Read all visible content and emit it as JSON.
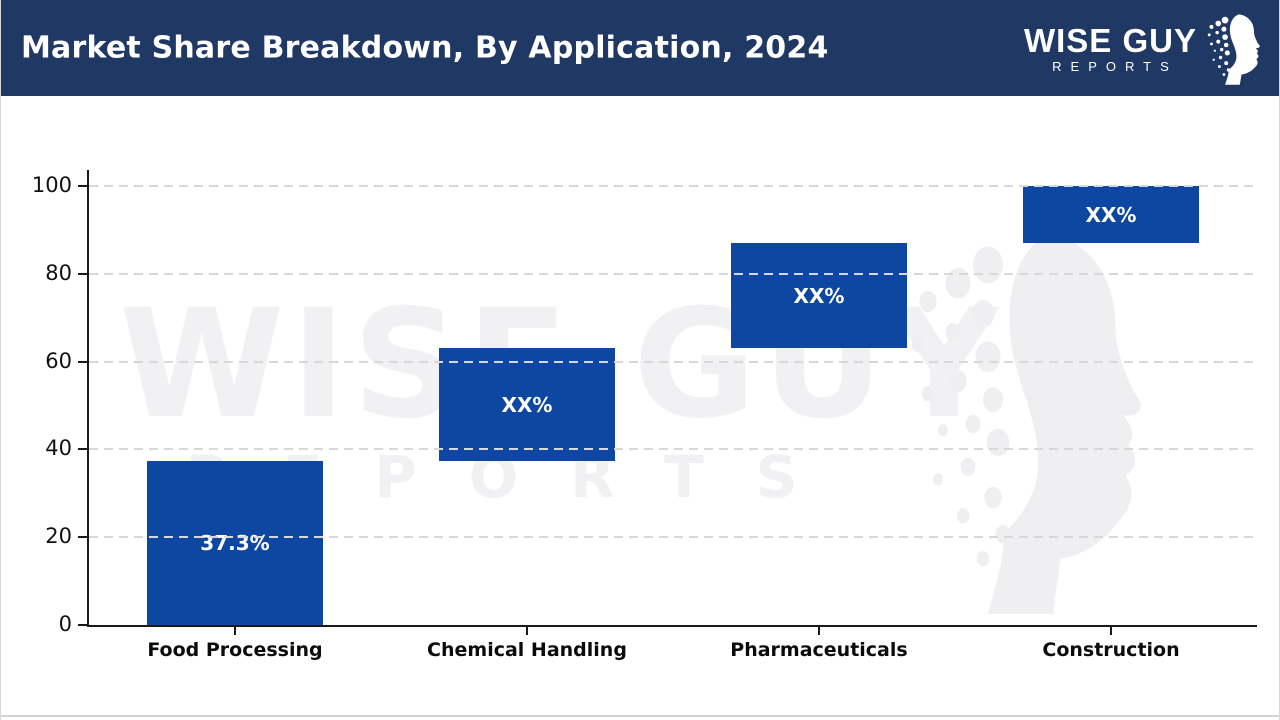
{
  "header": {
    "title": "Market Share Breakdown, By Application, 2024",
    "logo_line1": "WISE GUY",
    "logo_line2": "REPORTS"
  },
  "watermark": {
    "line1": "WISE GUY",
    "line2": "REPORTS"
  },
  "chart_data": {
    "type": "bar",
    "variant": "floating-waterfall",
    "title": "Market Share Breakdown, By Application, 2024",
    "categories": [
      "Food Processing",
      "Chemical Handling",
      "Pharmaceuticals",
      "Construction"
    ],
    "series": [
      {
        "name": "Market Share (%)",
        "segments": [
          {
            "category": "Food Processing",
            "start": 0,
            "end": 37.3,
            "label": "37.3%"
          },
          {
            "category": "Chemical Handling",
            "start": 37.3,
            "end": 63,
            "label": "XX%"
          },
          {
            "category": "Pharmaceuticals",
            "start": 63,
            "end": 87,
            "label": "XX%"
          },
          {
            "category": "Construction",
            "start": 87,
            "end": 100,
            "label": "XX%"
          }
        ]
      }
    ],
    "ylim": [
      0,
      100
    ],
    "yticks": [
      0,
      20,
      40,
      60,
      80,
      100
    ],
    "xlabel": "",
    "ylabel": "",
    "grid": "horizontal-dashed",
    "legend": "none",
    "colors": {
      "bar": "#0D47A1",
      "bar_label": "#FFFFFF",
      "axis": "#1A1A1A",
      "gridline": "#D8D8D8",
      "header_bg": "#1F3864",
      "watermark": "#F1F1F4"
    }
  }
}
